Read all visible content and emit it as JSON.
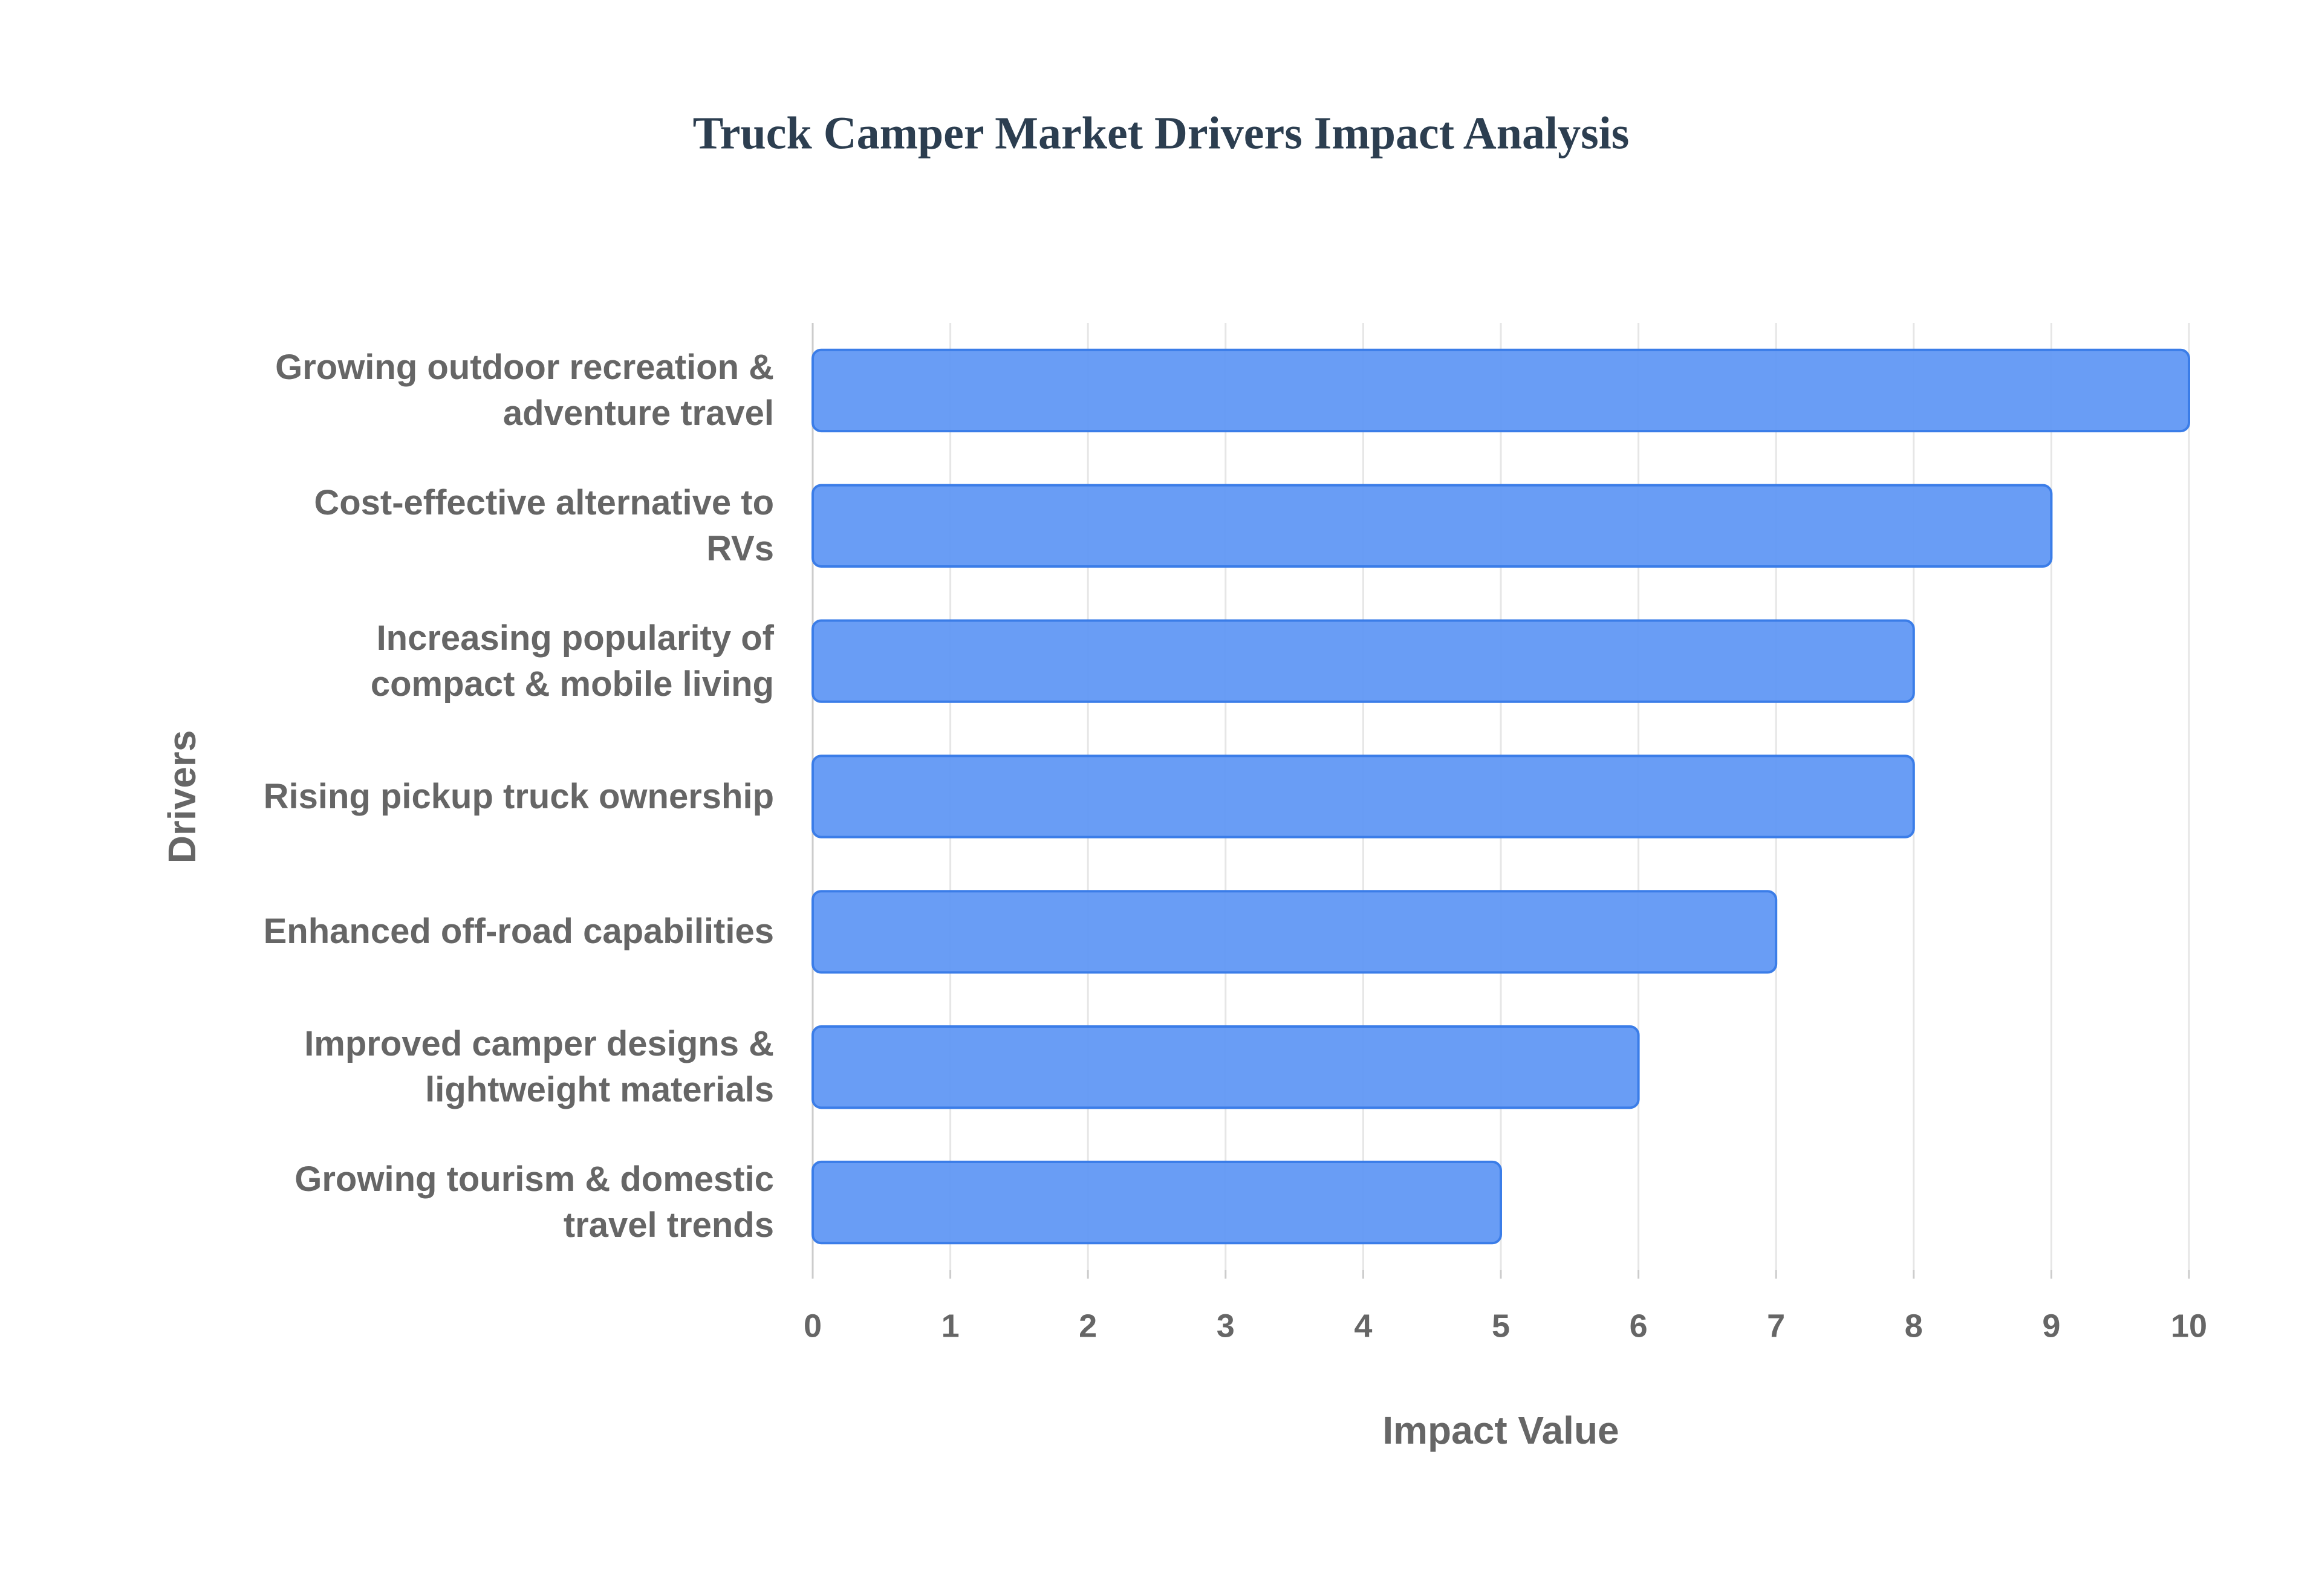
{
  "chart_data": {
    "type": "bar",
    "orientation": "horizontal",
    "title": "Truck Camper Market Drivers Impact Analysis",
    "x_label": "Impact Value",
    "y_label": "Drivers",
    "categories": [
      "Growing outdoor recreation &\nadventure travel",
      "Cost-effective alternative to\nRVs",
      "Increasing popularity of\ncompact & mobile living",
      "Rising pickup truck ownership",
      "Enhanced off-road capabilities",
      "Improved camper designs &\nlightweight materials",
      "Growing tourism & domestic\ntravel trends"
    ],
    "values": [
      10,
      9,
      8,
      8,
      7,
      6,
      5
    ],
    "color": "#6198f4",
    "xlim": [
      0,
      10
    ],
    "xticks": [
      0,
      1,
      2,
      3,
      4,
      5,
      6,
      7,
      8,
      9,
      10
    ],
    "grid": true
  }
}
